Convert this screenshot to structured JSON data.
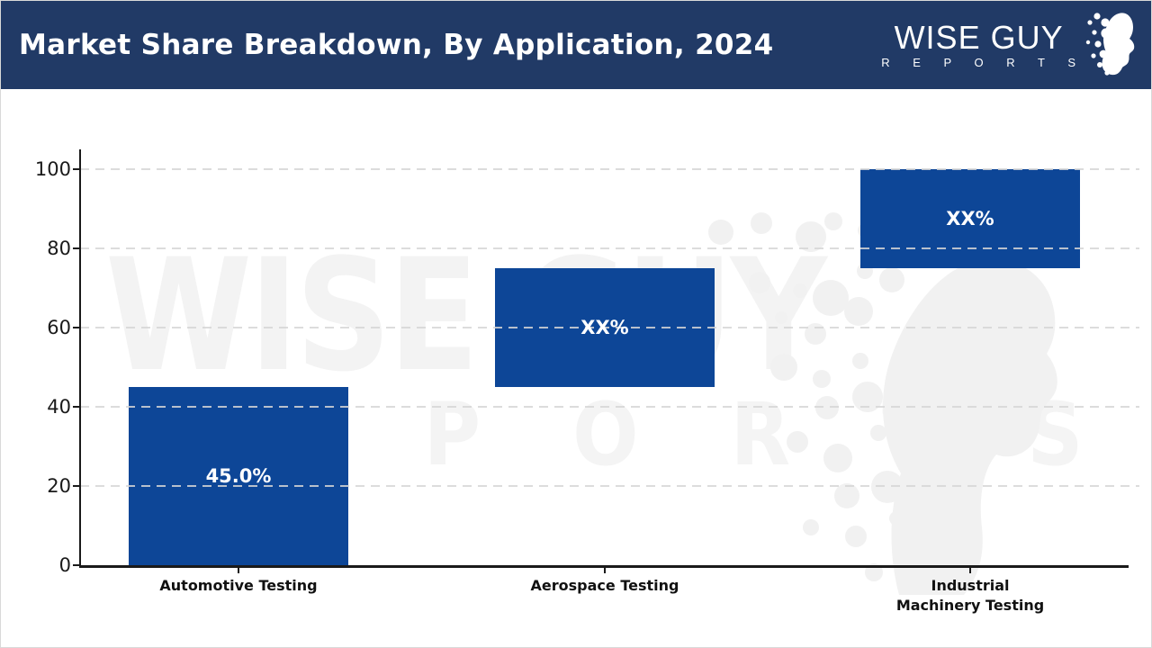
{
  "header": {
    "title": "Market Share Breakdown, By Application, 2024",
    "logo": {
      "line1": "WISE GUY",
      "line2": "R E P O R T S"
    }
  },
  "watermark": {
    "line1": "WISE GUY",
    "line2": "R E P O R T S"
  },
  "colors": {
    "header_bg": "#213a66",
    "bar": "#0d4697",
    "bar_label": "#ffffff",
    "grid": "#d6d6d6",
    "axis": "#1a1a1a",
    "watermark": "#f3f3f3"
  },
  "y_axis": {
    "ticks": [
      0,
      20,
      40,
      60,
      80,
      100
    ]
  },
  "x_axis": {
    "category_labels": [
      [
        "Automotive Testing"
      ],
      [
        "Aerospace Testing"
      ],
      [
        "Industrial",
        "Machinery Testing"
      ]
    ]
  },
  "chart_data": {
    "type": "bar",
    "subtype": "floating-waterfall",
    "title": "Market Share Breakdown, By Application, 2024",
    "categories": [
      "Automotive Testing",
      "Aerospace Testing",
      "Industrial Machinery Testing"
    ],
    "bars": [
      {
        "category": "Automotive Testing",
        "start": 0,
        "end": 45,
        "value": 45,
        "label": "45.0%"
      },
      {
        "category": "Aerospace Testing",
        "start": 45,
        "end": 75,
        "value": 30,
        "label": "XX%"
      },
      {
        "category": "Industrial Machinery Testing",
        "start": 75,
        "end": 100,
        "value": 25,
        "label": "XX%"
      }
    ],
    "xlabel": "",
    "ylabel": "",
    "ylim": [
      0,
      100
    ],
    "yticks": [
      0,
      20,
      40,
      60,
      80,
      100
    ],
    "grid": "horizontal dashed, drawn above bars",
    "legend": "none"
  }
}
